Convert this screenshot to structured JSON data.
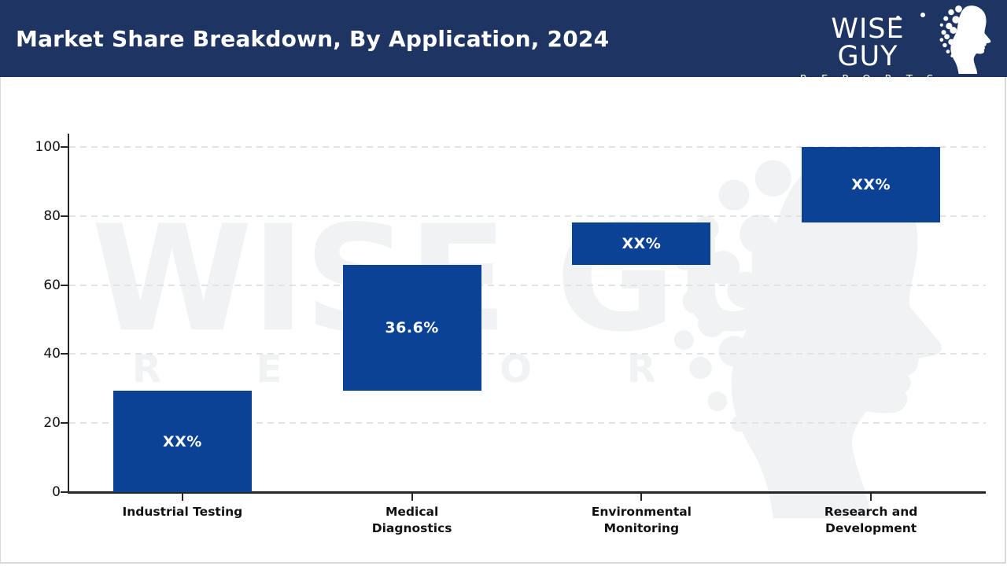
{
  "header": {
    "title": "Market Share Breakdown, By Application, 2024",
    "logo": {
      "name": "WISE GUY",
      "sub": "R E P O R T S"
    }
  },
  "watermark": {
    "name": "WISE GUY",
    "sub": "R E P O R T S"
  },
  "colors": {
    "header_bg": "#1e3462",
    "bar": "#0b4295",
    "axis": "#262626",
    "grid": "#e3e3e7",
    "tick_text": "#111111",
    "bar_label_text": "#ffffff",
    "watermark": "#f1f2f4",
    "frame_border": "#d9d9d9"
  },
  "chart_data": {
    "type": "bar",
    "subtype": "waterfall",
    "title": "Market Share Breakdown, By Application, 2024",
    "categories": [
      "Industrial Testing",
      "Medical Diagnostics",
      "Environmental Monitoring",
      "Research and Development"
    ],
    "category_lines": [
      [
        "Industrial Testing"
      ],
      [
        "Medical",
        "Diagnostics"
      ],
      [
        "Environmental",
        "Monitoring"
      ],
      [
        "Research and",
        "Development"
      ]
    ],
    "segments": [
      {
        "category": "Industrial Testing",
        "start": 0,
        "end": 29.3,
        "value_label": "XX%"
      },
      {
        "category": "Medical Diagnostics",
        "start": 29.3,
        "end": 65.9,
        "value": 36.6,
        "value_label": "36.6%"
      },
      {
        "category": "Environmental Monitoring",
        "start": 65.9,
        "end": 78.1,
        "value_label": "XX%"
      },
      {
        "category": "Research and Development",
        "start": 78.1,
        "end": 100,
        "value_label": "XX%"
      }
    ],
    "ylim": [
      0,
      100
    ],
    "yticks": [
      0,
      20,
      40,
      60,
      80,
      100
    ],
    "xlabel": "",
    "ylabel": "",
    "grid": "horizontal-dashed",
    "legend": "none"
  }
}
